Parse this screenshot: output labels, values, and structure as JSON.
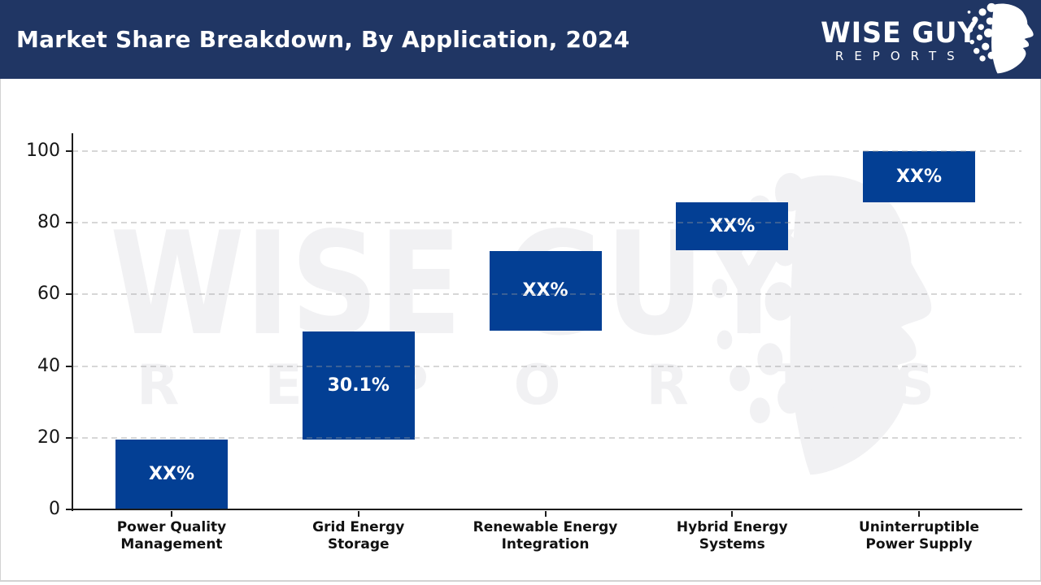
{
  "header": {
    "title": "Market Share Breakdown, By Application, 2024",
    "bg_color": "#203664",
    "logo": {
      "line1": "WISE GUY",
      "line2": "REPORTS"
    }
  },
  "watermark": {
    "line1": "WISE GUY",
    "line2": "REPORTS"
  },
  "chart_data": {
    "type": "bar",
    "subtype": "floating-waterfall",
    "title": "Market Share Breakdown, By Application, 2024",
    "categories": [
      "Power Quality Management",
      "Grid Energy Storage",
      "Renewable Energy Integration",
      "Hybrid Energy Systems",
      "Uninterruptible Power Supply"
    ],
    "category_lines": [
      [
        "Power Quality",
        "Management"
      ],
      [
        "Grid Energy",
        "Storage"
      ],
      [
        "Renewable Energy",
        "Integration"
      ],
      [
        "Hybrid Energy",
        "Systems"
      ],
      [
        "Uninterruptible",
        "Power Supply"
      ]
    ],
    "bars": [
      {
        "category": "Power Quality Management",
        "label": "XX%",
        "start": 0,
        "end": 19.6
      },
      {
        "category": "Grid Energy Storage",
        "label": "30.1%",
        "start": 19.6,
        "end": 49.7
      },
      {
        "category": "Renewable Energy Integration",
        "label": "XX%",
        "start": 49.9,
        "end": 72.2
      },
      {
        "category": "Hybrid Energy Systems",
        "label": "XX%",
        "start": 72.4,
        "end": 85.7
      },
      {
        "category": "Uninterruptible Power Supply",
        "label": "XX%",
        "start": 85.7,
        "end": 100
      }
    ],
    "xlabel": "",
    "ylabel": "",
    "yticks": [
      0,
      20,
      40,
      60,
      80,
      100
    ],
    "ylim": [
      0,
      105
    ],
    "grid": "horizontal-dashed",
    "legend": "none",
    "bar_color": "#033f94",
    "bar_label_color": "#ffffff",
    "axis_color": "#1c1c1c"
  }
}
